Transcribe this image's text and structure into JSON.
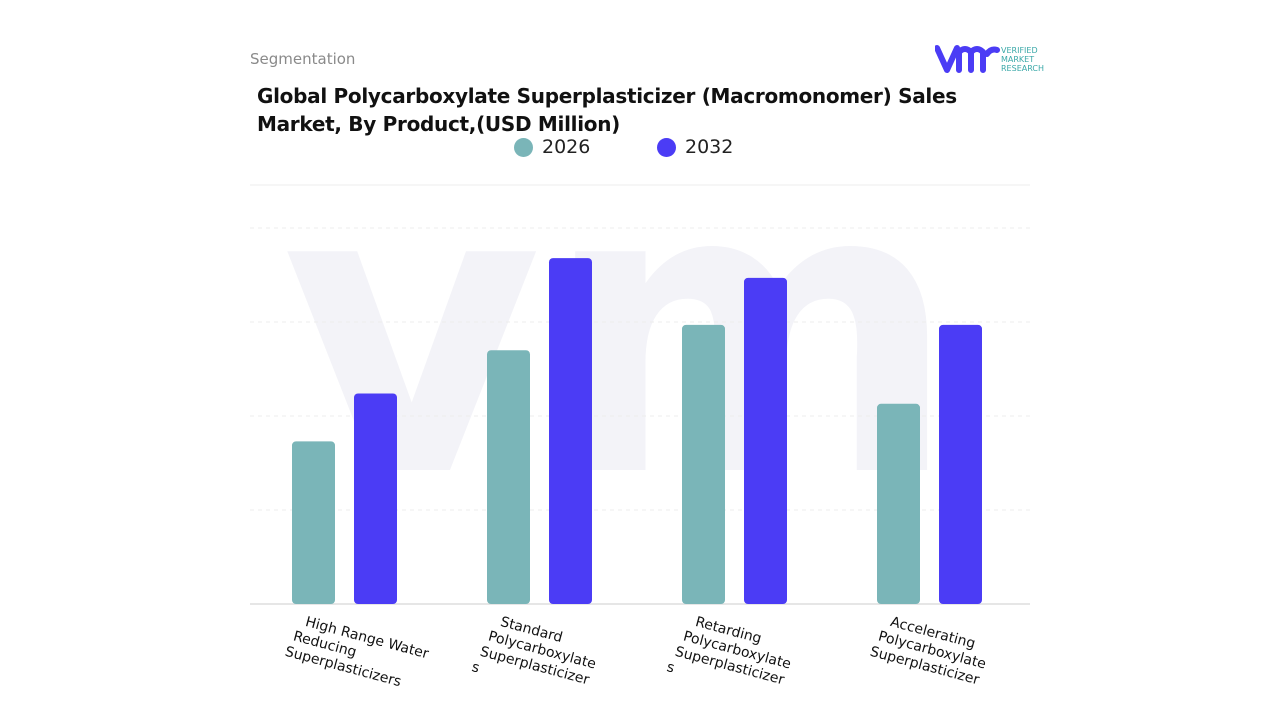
{
  "header": {
    "segment_label": "Segmentation",
    "logo_text": [
      "VERIFIED",
      "MARKET",
      "RESEARCH"
    ]
  },
  "chart_data": {
    "type": "bar",
    "title": "Global Polycarboxylate Superplasticizer (Macromonomer) Sales Market, By Product,(USD Million)",
    "categories": [
      [
        "High Range Water",
        "Reducing",
        "Superplasticizers"
      ],
      [
        "Standard",
        "Polycarboxylate",
        "Superplasticizer",
        "s"
      ],
      [
        "Retarding",
        "Polycarboxylate",
        "Superplasticizer",
        "s"
      ],
      [
        "Accelerating",
        "Polycarboxylate",
        "Superplasticizer"
      ]
    ],
    "series": [
      {
        "name": "2026",
        "color": "#7ab5b8",
        "values": [
          1.73,
          2.7,
          2.97,
          2.13
        ]
      },
      {
        "name": "2032",
        "color": "#4b3cf5",
        "values": [
          2.24,
          3.68,
          3.47,
          2.97
        ]
      }
    ],
    "ylim": [
      0,
      4
    ],
    "y_ticks_shown": false,
    "grid": true,
    "legend_placement": "top-center",
    "xlabel": "",
    "ylabel": ""
  }
}
